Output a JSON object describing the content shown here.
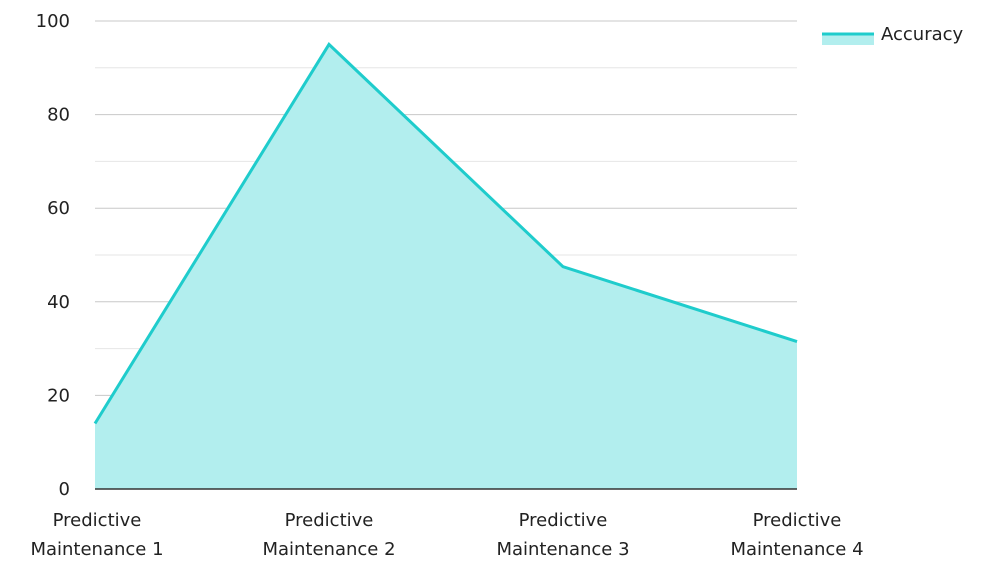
{
  "chart_data": {
    "type": "area",
    "title": "",
    "xlabel": "",
    "ylabel": "",
    "categories": [
      "Predictive Maintenance 1",
      "Predictive Maintenance 2",
      "Predictive Maintenance 3",
      "Predictive Maintenance 4"
    ],
    "category_lines": [
      [
        "Predictive",
        "Maintenance 1"
      ],
      [
        "Predictive",
        "Maintenance 2"
      ],
      [
        "Predictive",
        "Maintenance 3"
      ],
      [
        "Predictive",
        "Maintenance 4"
      ]
    ],
    "series": [
      {
        "name": "Accuracy",
        "values": [
          14,
          95,
          47.5,
          31.5
        ]
      }
    ],
    "ylim": [
      0,
      100
    ],
    "yticks": [
      "0",
      "20",
      "40",
      "60",
      "80",
      "100"
    ],
    "grid": true,
    "legend_position": "top-right",
    "colors": {
      "line": "#1fcccc",
      "fill": "#b2eeee",
      "grid_major": "#c8c8c8",
      "grid_minor": "#e6e6e6",
      "axis": "#333333"
    }
  }
}
